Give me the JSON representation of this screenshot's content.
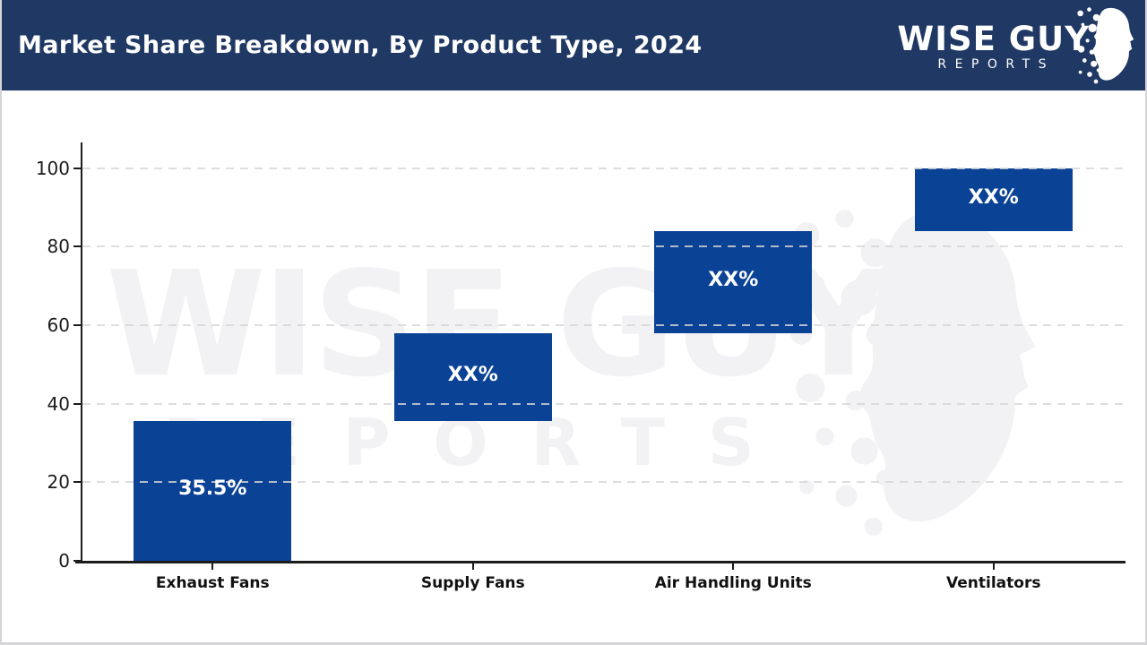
{
  "header": {
    "title": "Market Share Breakdown, By Product Type, 2024",
    "logo": {
      "name": "WISE GUY",
      "subtitle": "REPORTS"
    }
  },
  "watermark": {
    "line1": "WISE GUY",
    "line2": "REPORTS"
  },
  "chart_data": {
    "type": "bar",
    "subtype": "waterfall",
    "title": "Market Share Breakdown, By Product Type, 2024",
    "categories": [
      "Exhaust Fans",
      "Supply Fans",
      "Air Handling Units",
      "Ventilators"
    ],
    "segments": [
      {
        "category": "Exhaust Fans",
        "start": 0,
        "end": 35.5,
        "label": "35.5%"
      },
      {
        "category": "Supply Fans",
        "start": 35.5,
        "end": 58,
        "label": "XX%"
      },
      {
        "category": "Air Handling Units",
        "start": 58,
        "end": 84,
        "label": "XX%"
      },
      {
        "category": "Ventilators",
        "start": 84,
        "end": 100,
        "label": "XX%"
      }
    ],
    "yticks": [
      0,
      20,
      40,
      60,
      80,
      100
    ],
    "ylim": [
      0,
      106.8
    ],
    "xlabel": "",
    "ylabel": "",
    "grid": "horizontal-dashed",
    "legend": "none",
    "bar_color": "#0a4296",
    "bar_label_color": "#ffffff"
  },
  "colors": {
    "header_bg": "#1f3864",
    "bar": "#0a4296",
    "axis": "#1c1c1c",
    "gridline": "#d6d6d6",
    "watermark": "#f2f2f4",
    "page_bg": "#ffffff"
  }
}
